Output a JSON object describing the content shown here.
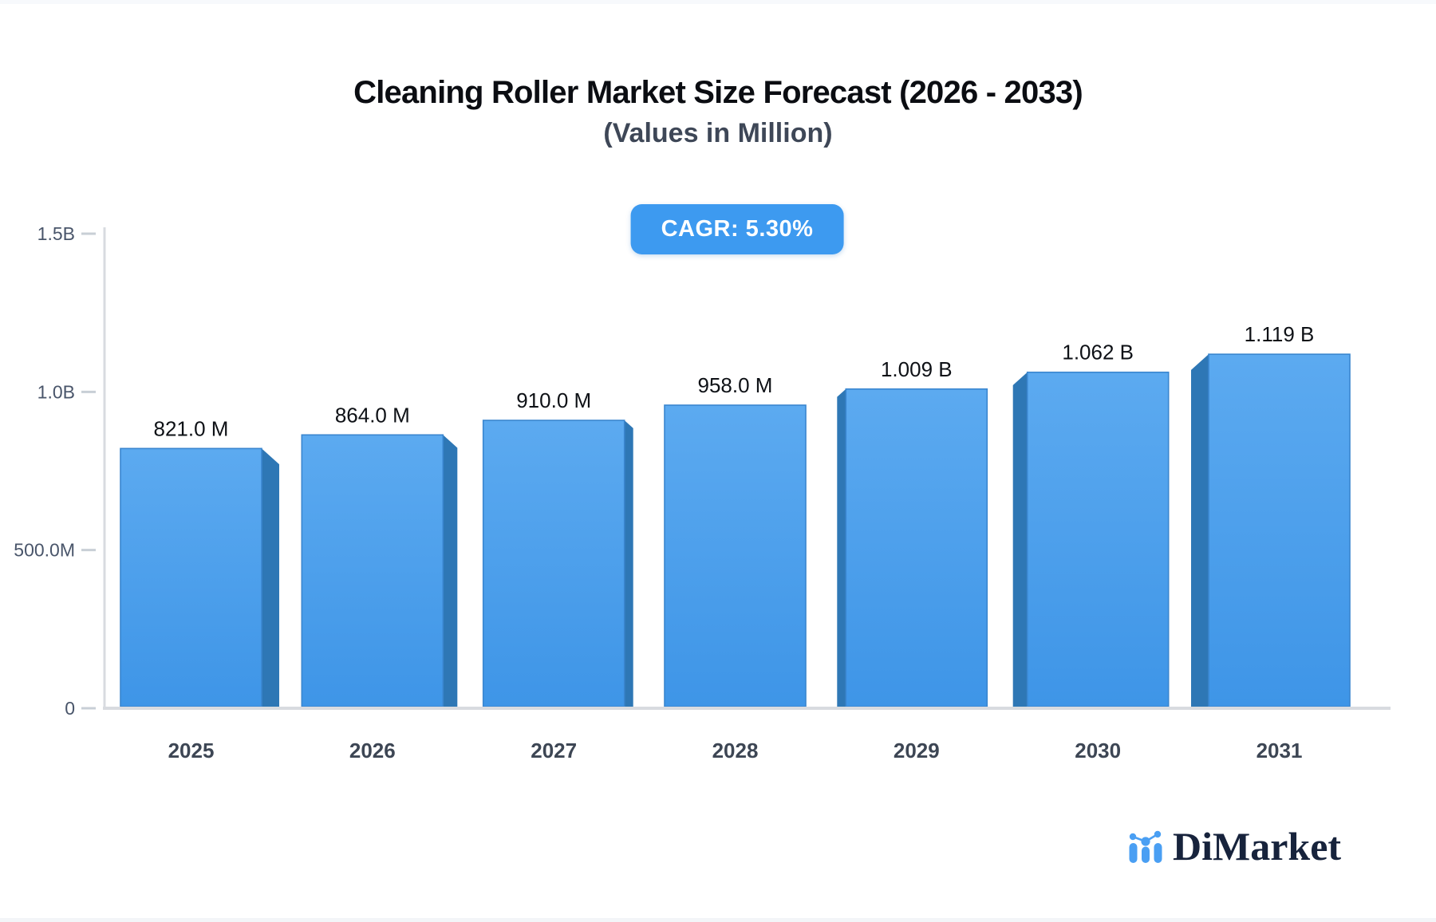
{
  "title": "Cleaning Roller Market Size Forecast (2026 - 2033)",
  "subtitle": "(Values in Million)",
  "badge": {
    "label": "CAGR: 5.30%",
    "bg": "#3d9af0",
    "text_color": "#ffffff"
  },
  "chart_data": {
    "type": "bar",
    "title": "Cleaning Roller Market Size Forecast (2026 - 2033)",
    "subtitle": "(Values in Million)",
    "categories": [
      "2025",
      "2026",
      "2027",
      "2028",
      "2029",
      "2030",
      "2031"
    ],
    "values": [
      821,
      864,
      910,
      958,
      1009,
      1062,
      1119
    ],
    "bar_labels": [
      "821.0 M",
      "864.0 M",
      "910.0 M",
      "958.0 M",
      "1.009 B",
      "1.062 B",
      "1.119 B"
    ],
    "xlabel": "",
    "ylabel": "",
    "ylim": [
      0,
      1500
    ],
    "yticks": [
      {
        "value": 0,
        "label": "0"
      },
      {
        "value": 500,
        "label": "500.0M"
      },
      {
        "value": 1000,
        "label": "1.0B"
      },
      {
        "value": 1500,
        "label": "1.5B"
      }
    ],
    "grid": false,
    "legend": false,
    "style": "3d-perspective-bars",
    "colors": {
      "bar_face_top": "#5caaf0",
      "bar_face_bottom": "#3e95e7",
      "bar_stroke": "#3a86cf",
      "bar_side": "#2e77b5",
      "axis": "#d8dbe0",
      "tick_dash": "#c8cfd6"
    }
  },
  "logo": {
    "text": "DiMarket",
    "text_color": "#17233c",
    "icon": "bar-chart-logo-icon",
    "icon_color": "#4a9ff3"
  }
}
